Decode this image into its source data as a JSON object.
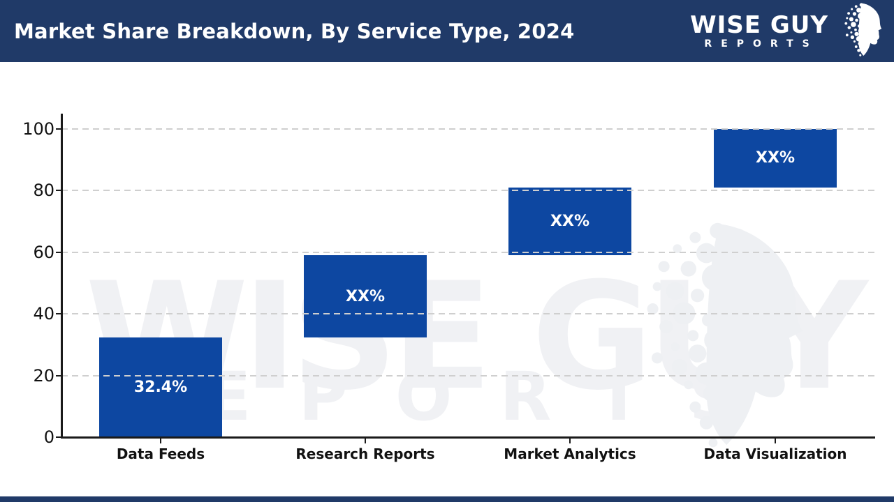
{
  "header": {
    "title": "Market Share Breakdown, By Service Type, 2024"
  },
  "brand": {
    "name_top": "WISE GUY",
    "name_bottom": "REPORTS",
    "head_icon": "dotted-head-profile-icon"
  },
  "watermark": {
    "line1": "WISE GUY",
    "line2": "REPORTS"
  },
  "colors": {
    "header_navy": "#203a68",
    "footer_navy": "#203a68",
    "bar_blue": "#0d47a1",
    "gridline_gray": "#cfcfcf",
    "axis_black": "#1a1a1a",
    "bar_label_white": "#ffffff",
    "watermark_gray": "#f0f1f4"
  },
  "chart_data": {
    "type": "bar",
    "subtype": "waterfall",
    "title": "Market Share Breakdown, By Service Type, 2024",
    "categories": [
      "Data Feeds",
      "Research Reports",
      "Market Analytics",
      "Data Visualization"
    ],
    "segments": [
      {
        "category": "Data Feeds",
        "start": 0,
        "end": 32.4,
        "label": "32.4%"
      },
      {
        "category": "Research Reports",
        "start": 32.4,
        "end": 59,
        "label": "XX%"
      },
      {
        "category": "Market Analytics",
        "start": 59,
        "end": 81,
        "label": "XX%"
      },
      {
        "category": "Data Visualization",
        "start": 81,
        "end": 100,
        "label": "XX%"
      }
    ],
    "ylabel": "",
    "xlabel": "",
    "yticks": [
      0,
      20,
      40,
      60,
      80,
      100
    ],
    "ylim": [
      0,
      105
    ],
    "grid": "dashed-horizontal",
    "legend": "none",
    "bar_color": "#0d47a1"
  }
}
